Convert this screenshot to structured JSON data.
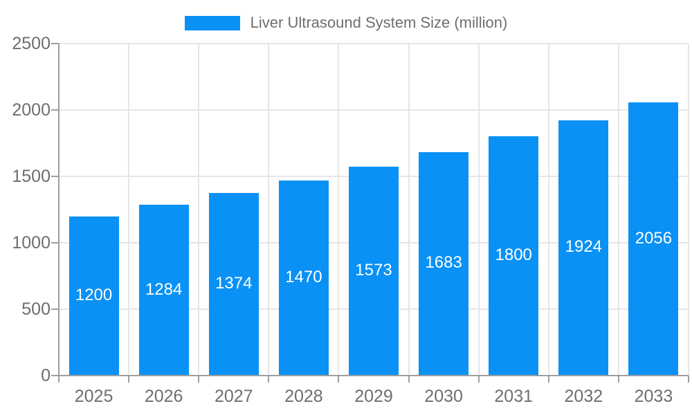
{
  "legend": {
    "label": "Liver Ultrasound System Size (million)"
  },
  "chart_data": {
    "type": "bar",
    "categories": [
      "2025",
      "2026",
      "2027",
      "2028",
      "2029",
      "2030",
      "2031",
      "2032",
      "2033"
    ],
    "values": [
      1200,
      1284,
      1374,
      1470,
      1573,
      1683,
      1800,
      1924,
      2056
    ],
    "title": "Liver Ultrasound System Size (million)",
    "xlabel": "",
    "ylabel": "",
    "ylim": [
      0,
      2500
    ],
    "yticks": [
      0,
      500,
      1000,
      1500,
      2000,
      2500
    ],
    "grid": true,
    "legend_position": "top",
    "bar_color": "#0991f5",
    "value_label_color": "#ffffff"
  },
  "colors": {
    "axis_text": "#6e6e6e",
    "grid_line": "#e6e6e6",
    "axis_line": "#9e9e9e",
    "background": "#ffffff"
  }
}
